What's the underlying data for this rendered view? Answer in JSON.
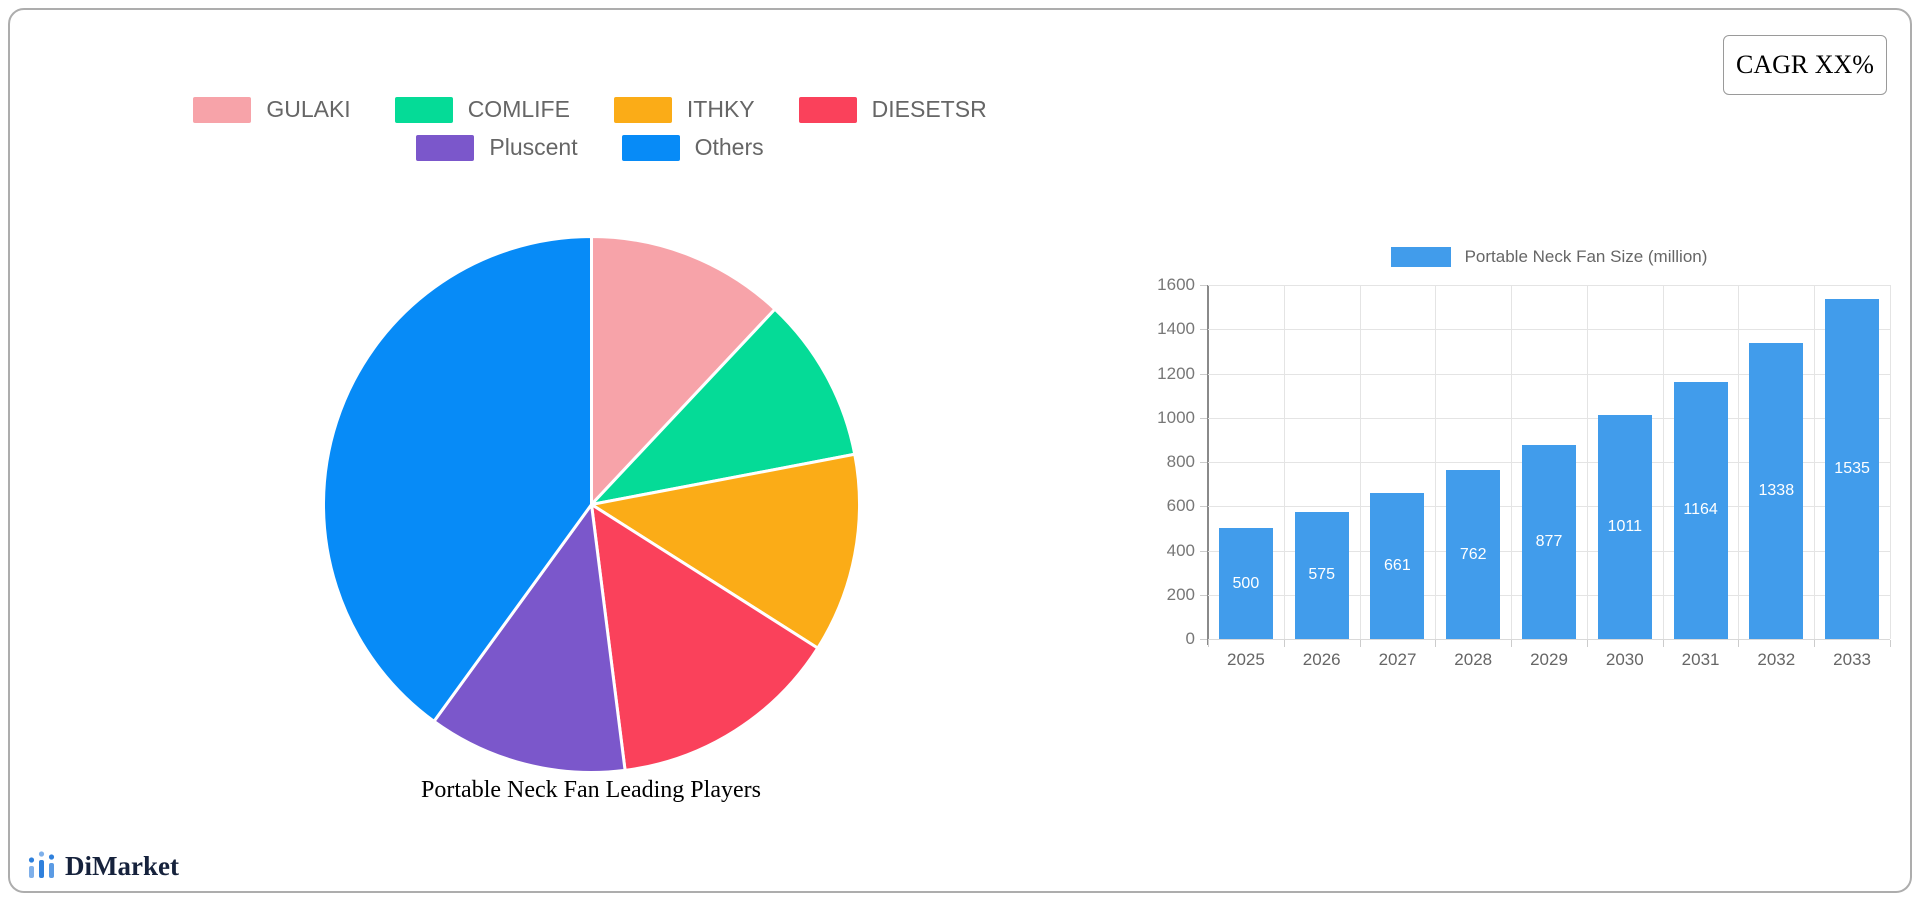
{
  "badge": {
    "cagr_label": "CAGR XX%"
  },
  "brand": {
    "name": "DiMarket"
  },
  "chart_data": [
    {
      "type": "pie",
      "title": "Portable Neck Fan Leading Players",
      "labels": [
        "GULAKI",
        "COMLIFE",
        "ITHKY",
        "DIESETSR",
        "Pluscent",
        "Others"
      ],
      "values": [
        12,
        10,
        12,
        14,
        12,
        40
      ],
      "unit": "%",
      "colors": [
        "#F7A3A9",
        "#05DB97",
        "#FBAC17",
        "#FA415B",
        "#7B57CB",
        "#078BF7"
      ],
      "start_angle_deg": 0,
      "direction": "clockwise-from-top",
      "legend_position": "top",
      "legend_rows": [
        4,
        2
      ]
    },
    {
      "type": "bar",
      "series_name": "Portable Neck Fan Size (million)",
      "categories": [
        "2025",
        "2026",
        "2027",
        "2028",
        "2029",
        "2030",
        "2031",
        "2032",
        "2033"
      ],
      "values": [
        500,
        575,
        661,
        762,
        877,
        1011,
        1164,
        1338,
        1535
      ],
      "ylim": [
        0,
        1600
      ],
      "ytick_step": 200,
      "bar_color": "#419CEB",
      "grid": true,
      "value_labels": "inside-center-white",
      "legend_position": "top"
    }
  ]
}
